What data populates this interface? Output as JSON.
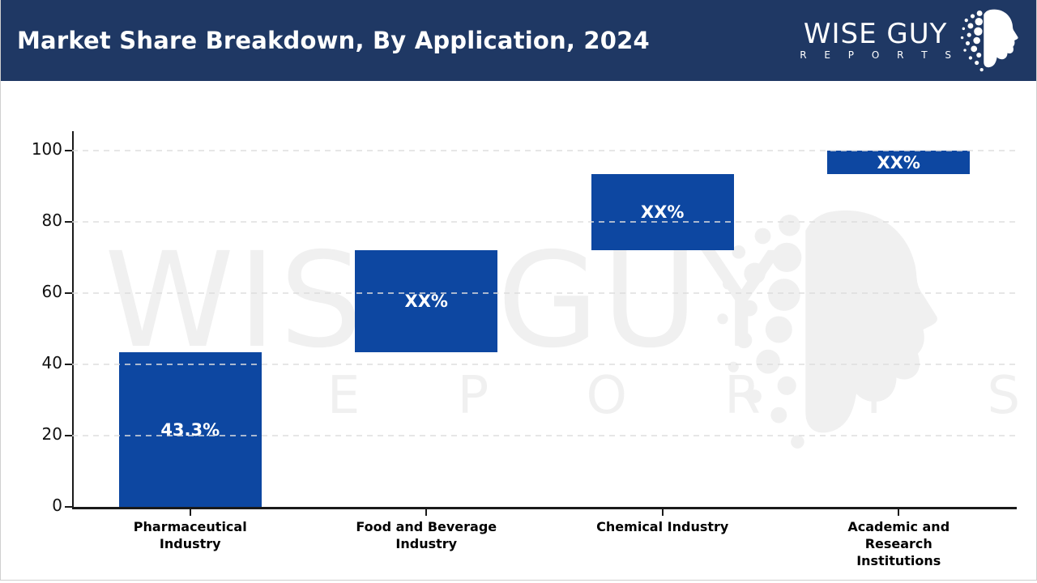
{
  "header": {
    "title": "Market Share Breakdown, By Application, 2024",
    "logo": {
      "line1": "WISE GUY",
      "line2": "R E P O R T S"
    }
  },
  "watermark": {
    "line1": "WISE GUY",
    "line2": "R E P O R T S"
  },
  "colors": {
    "header_bg": "#1f3864",
    "bar": "#0d47a1",
    "bar_label": "#ffffff",
    "watermark": "#f0f0f0",
    "gridline": "#dedede",
    "axis": "#1a1a1a"
  },
  "chart_data": {
    "type": "bar",
    "subtype": "waterfall",
    "title": "Market Share Breakdown, By Application, 2024",
    "xlabel": "",
    "ylabel": "",
    "ylim": [
      0,
      100
    ],
    "yticks": [
      0,
      20,
      40,
      60,
      80,
      100
    ],
    "grid": "horizontal-dashed",
    "legend": "none",
    "categories": [
      "Pharmaceutical Industry",
      "Food and Beverage Industry",
      "Chemical Industry",
      "Academic and Research Institutions"
    ],
    "category_label_lines": [
      [
        "Pharmaceutical",
        "Industry"
      ],
      [
        "Food and Beverage",
        "Industry"
      ],
      [
        "Chemical Industry"
      ],
      [
        "Academic and",
        "Research",
        "Institutions"
      ]
    ],
    "segments": [
      {
        "category": "Pharmaceutical Industry",
        "start": 0,
        "end": 43.3,
        "size": 43.3,
        "label": "43.3%"
      },
      {
        "category": "Food and Beverage Industry",
        "start": 43.3,
        "end": 72.0,
        "size": 28.7,
        "label": "XX%"
      },
      {
        "category": "Chemical Industry",
        "start": 72.0,
        "end": 93.4,
        "size": 21.4,
        "label": "XX%"
      },
      {
        "category": "Academic and Research Institutions",
        "start": 93.4,
        "end": 100.0,
        "size": 6.6,
        "label": "XX%"
      }
    ]
  }
}
